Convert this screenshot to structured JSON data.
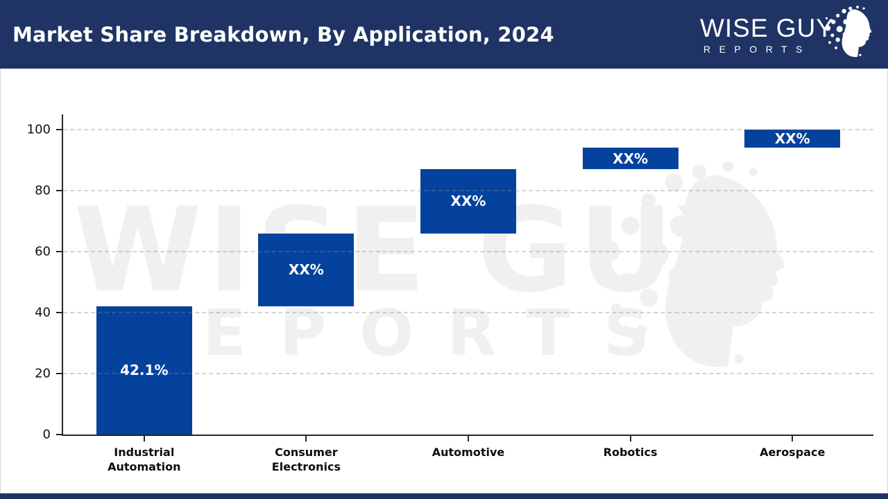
{
  "header": {
    "title": "Market Share Breakdown, By Application, 2024",
    "logo": {
      "brand_line1": "WISE GUY",
      "brand_line2": "REPORTS"
    }
  },
  "watermark": {
    "line1": "WISE GUY",
    "line2": "REPORTS"
  },
  "colors": {
    "header_bg": "#1f3365",
    "footer_bg": "#1f3365",
    "bar_fill": "#05429d",
    "value_label": "#ffffff",
    "axis": "#262626",
    "watermark": "#f0f0f3"
  },
  "chart_data": {
    "type": "bar",
    "subtype": "floating-segment-waterfall",
    "title": "Market Share Breakdown, By Application, 2024",
    "categories": [
      "Industrial Automation",
      "Consumer Electronics",
      "Automotive",
      "Robotics",
      "Aerospace"
    ],
    "bars": [
      {
        "category": "Industrial Automation",
        "category_lines": [
          "Industrial",
          "Automation"
        ],
        "start": 0,
        "end": 42.1,
        "label": "42.1%"
      },
      {
        "category": "Consumer Electronics",
        "category_lines": [
          "Consumer",
          "Electronics"
        ],
        "start": 42.1,
        "end": 66,
        "label": "XX%"
      },
      {
        "category": "Automotive",
        "category_lines": [
          "Automotive"
        ],
        "start": 66,
        "end": 87,
        "label": "XX%"
      },
      {
        "category": "Robotics",
        "category_lines": [
          "Robotics"
        ],
        "start": 87,
        "end": 94,
        "label": "XX%"
      },
      {
        "category": "Aerospace",
        "category_lines": [
          "Aerospace"
        ],
        "start": 94,
        "end": 100,
        "label": "XX%"
      }
    ],
    "yticks": [
      0,
      20,
      40,
      60,
      80,
      100
    ],
    "ylim": [
      0,
      105
    ],
    "xlabel": "",
    "ylabel": "",
    "grid": {
      "horizontal": true,
      "style": "dashed"
    },
    "legend": null,
    "bar_color": "#05429d",
    "value_label_color": "#ffffff"
  }
}
